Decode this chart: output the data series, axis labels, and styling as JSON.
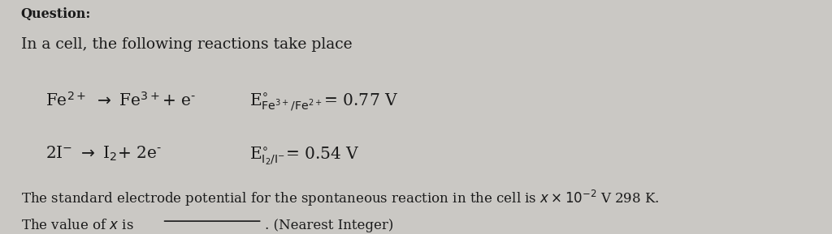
{
  "figsize": [
    10.24,
    2.89
  ],
  "dpi": 100,
  "bg_color": "#cac8c4",
  "ax_color": "#e8e6e0",
  "text_color": "#1a1a1a",
  "question_label": "Question:",
  "intro_line": "In a cell, the following reactions take place",
  "rxn1_lhs": "Fe$^{2+}$ $\\rightarrow$ Fe$^{3+}$+ e$^{\\bar{\\phantom{x}}}$",
  "rxn1_E": "E$^{\\circ}_{\\mathrm{Fe}^{3+}/\\mathrm{Fe}^{2+}}$",
  "rxn1_val": "= 0.77 V",
  "rxn2_lhs": "2I$^{-}$ $\\rightarrow$ I$_2$+ 2e$^{\\bar{\\phantom{x}}}$",
  "rxn2_E": "E$^{\\circ}_{\\mathrm{I}_2/\\mathrm{I}^{-}}$",
  "rxn2_val": "= 0.54 V",
  "bottom1": "The standard electrode potential for the spontaneous reaction in the cell is $x\\times10^{-2}$ V 298 K.",
  "bottom2a": "The value of $x$ is",
  "bottom2b": ". (Nearest Integer)"
}
